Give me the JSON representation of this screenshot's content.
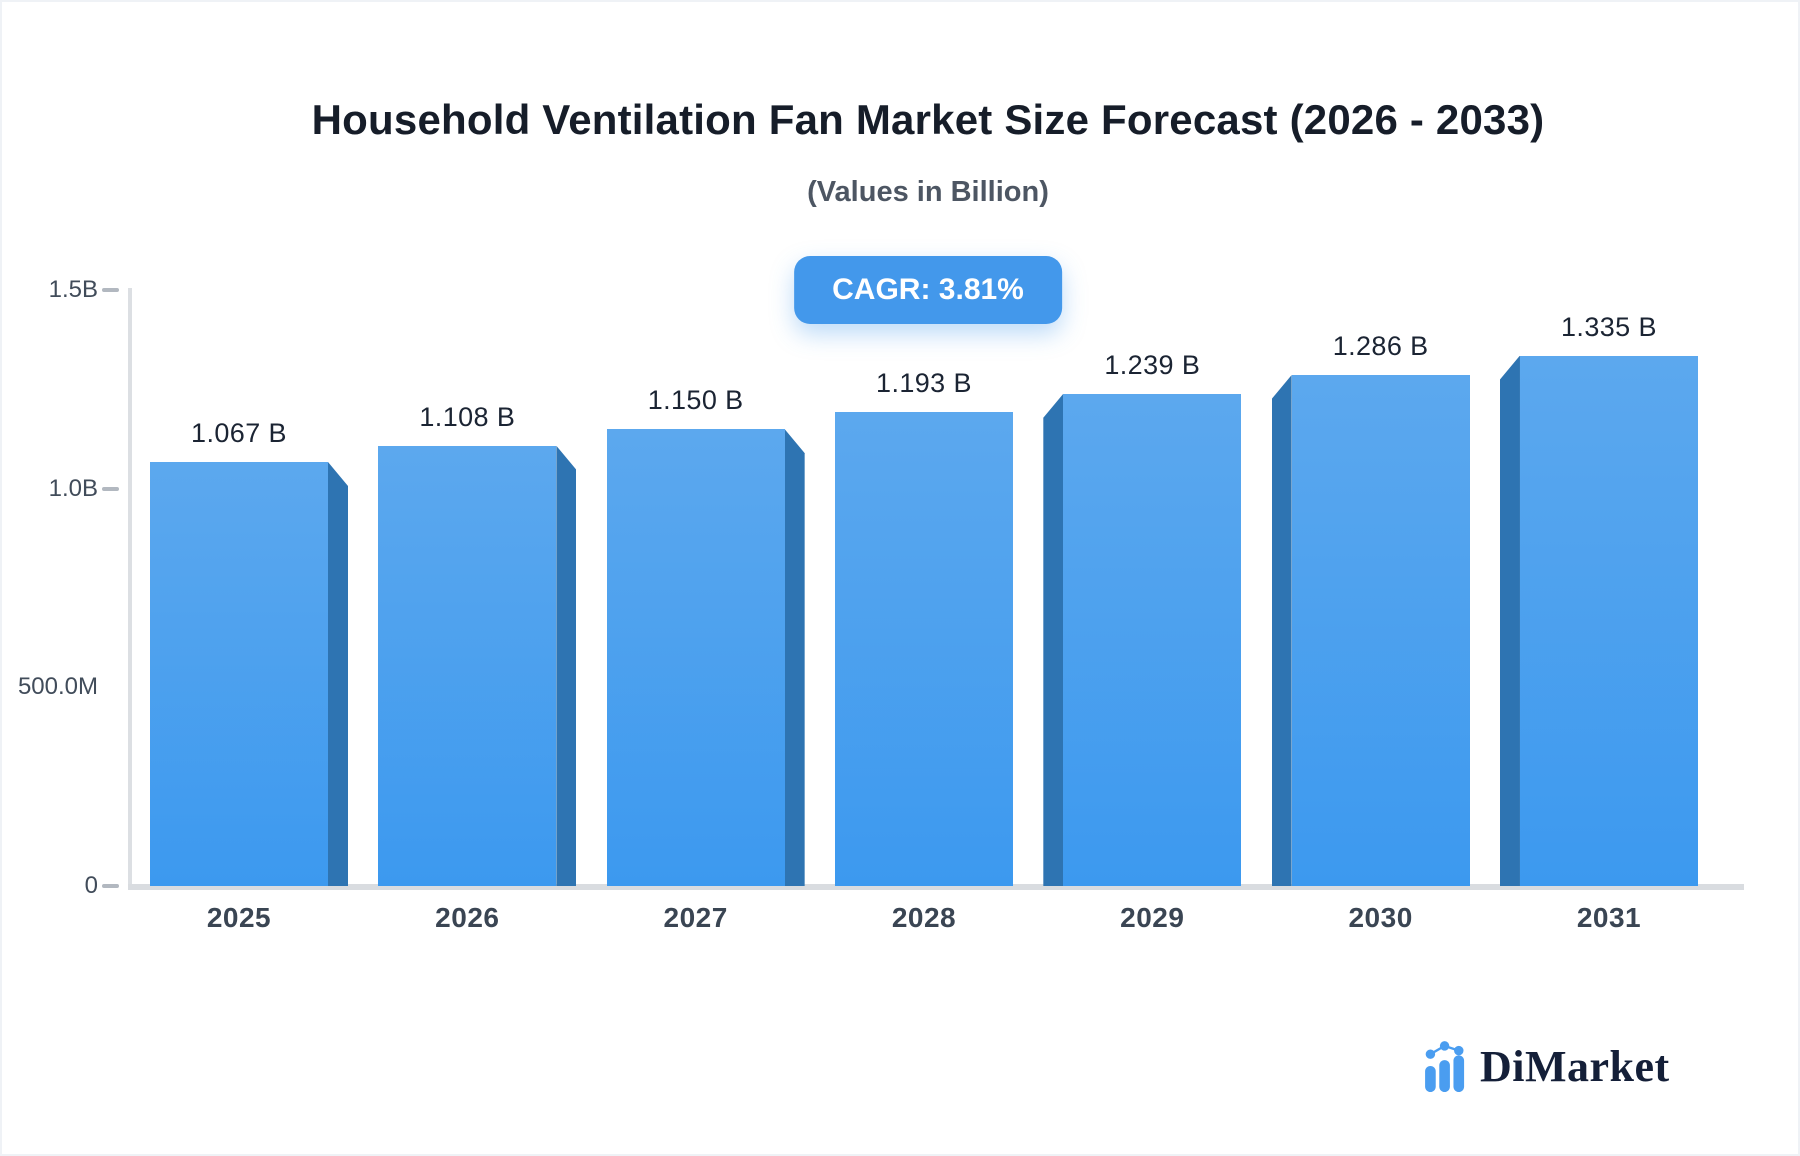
{
  "header": {
    "title": "Household Ventilation Fan Market Size Forecast (2026 - 2033)",
    "subtitle": "(Values in Billion)",
    "cagr_badge": "CAGR: 3.81%"
  },
  "brand": {
    "name": "DiMarket",
    "icon": "bar-chart-logo-icon"
  },
  "colors": {
    "accent_badge": "#4398eb",
    "bar_top": "#5ca8ee",
    "bar_bottom": "#3c99ef",
    "bar_bevel": "#2e74b2",
    "axis_line": "#d9dce0",
    "logo_blue": "#4a9df0",
    "logo_text": "#141f38"
  },
  "chart_data": {
    "type": "bar",
    "title": "Household Ventilation Fan Market Size Forecast (2026 - 2033)",
    "subtitle": "(Values in Billion)",
    "annotation": "CAGR: 3.81%",
    "unit": "Billion USD",
    "categories": [
      "2025",
      "2026",
      "2027",
      "2028",
      "2029",
      "2030",
      "2031"
    ],
    "values": [
      1.067,
      1.108,
      1.15,
      1.193,
      1.239,
      1.286,
      1.335
    ],
    "value_labels": [
      "1.067 B",
      "1.108 B",
      "1.150 B",
      "1.193 B",
      "1.239 B",
      "1.286 B",
      "1.335 B"
    ],
    "ylim": [
      0,
      1.5
    ],
    "grid": false,
    "legend": false,
    "yticks": [
      {
        "label": "1.5B",
        "value": 1.5,
        "dash": true
      },
      {
        "label": "1.0B",
        "value": 1.0,
        "dash": true
      },
      {
        "label": "500.0M",
        "value": 0.5,
        "dash": false
      },
      {
        "label": "0",
        "value": 0.0,
        "dash": true
      }
    ]
  }
}
